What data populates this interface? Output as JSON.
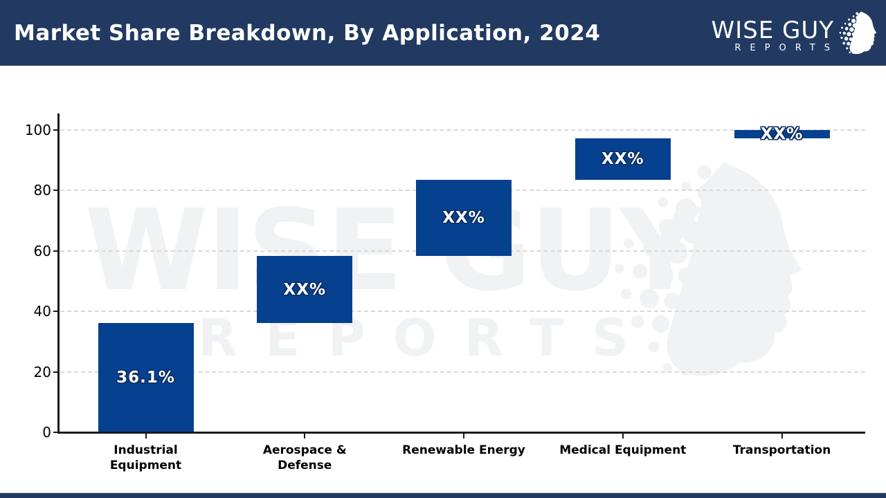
{
  "header": {
    "title": "Market Share Breakdown, By Application, 2024",
    "logo": {
      "line1": "WISE GUY",
      "line2": "REPORTS"
    }
  },
  "watermark": {
    "line1": "WISE GUY",
    "line2": "REPORTS"
  },
  "colors": {
    "header_bg": "#223a62",
    "bar": "#05418f",
    "bar_label": "#ffffff",
    "grid": "#d8d8d8",
    "axis": "#1a1a1a",
    "watermark": "#f1f2f4"
  },
  "chart_data": {
    "type": "bar",
    "subtype": "waterfall",
    "title": "Market Share Breakdown, By Application, 2024",
    "categories": [
      "Industrial\nEquipment",
      "Aerospace &\nDefense",
      "Renewable Energy",
      "Medical Equipment",
      "Transportation"
    ],
    "segments": [
      {
        "name": "Industrial Equipment",
        "start": 0,
        "end": 36.1,
        "label": "36.1%"
      },
      {
        "name": "Aerospace & Defense",
        "start": 36.1,
        "end": 58.3,
        "label": "XX%"
      },
      {
        "name": "Renewable Energy",
        "start": 58.3,
        "end": 83.4,
        "label": "XX%"
      },
      {
        "name": "Medical Equipment",
        "start": 83.4,
        "end": 97.2,
        "label": "XX%"
      },
      {
        "name": "Transportation",
        "start": 97.2,
        "end": 100,
        "label": "XX%"
      }
    ],
    "yticks": [
      0,
      20,
      40,
      60,
      80,
      100
    ],
    "ylim": [
      0,
      105
    ],
    "xlabel": "",
    "ylabel": "",
    "grid": {
      "horizontal": true,
      "style": "dashed"
    },
    "legend": null,
    "bar_value_labels_inside": true
  }
}
